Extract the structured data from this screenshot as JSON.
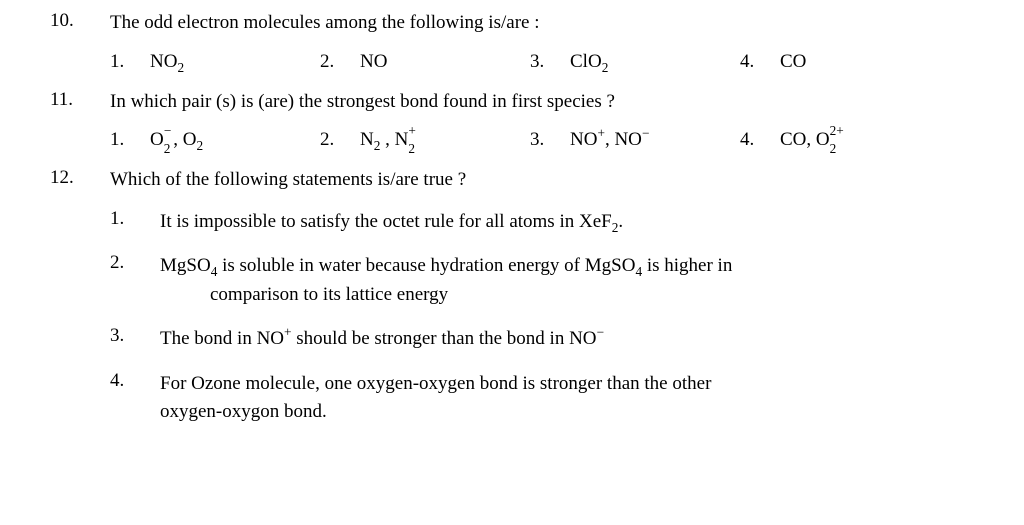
{
  "questions": [
    {
      "num": "10.",
      "text": "The odd electron molecules among the following is/are :",
      "layout": "row4",
      "options": [
        {
          "num": "1.",
          "html": "NO<sub>2</sub>"
        },
        {
          "num": "2.",
          "html": "NO"
        },
        {
          "num": "3.",
          "html": "ClO<sub>2</sub>"
        },
        {
          "num": "4.",
          "html": "CO"
        }
      ]
    },
    {
      "num": "11.",
      "text": "In which pair (s) is (are) the strongest bond found in first species ?",
      "layout": "row4",
      "options": [
        {
          "num": "1.",
          "html": "<span class=\"rel\">O<span class=\"subsup-sub\">2</span><span class=\"subsup-sup\">−</span></span>&nbsp;&nbsp;, O<sub>2</sub>"
        },
        {
          "num": "2.",
          "html": "N<sub>2</sub> , <span class=\"rel\">N<span class=\"subsup-sub\">2</span><span class=\"subsup-sup\">+</span></span>"
        },
        {
          "num": "3.",
          "html": "NO<sup>+</sup>, NO<sup>−</sup>"
        },
        {
          "num": "4.",
          "html": "CO, <span class=\"rel\">O<span class=\"subsup-sub\">2</span><span class=\"subsup-sup\">2+</span></span>"
        }
      ]
    },
    {
      "num": "12.",
      "text": "Which of the following statements is/are true ?",
      "layout": "list",
      "options": [
        {
          "num": "1.",
          "html": "It is impossible to satisfy the octet rule for all atoms in XeF<sub>2</sub>."
        },
        {
          "num": "2.",
          "html": "MgSO<sub>4</sub> is soluble in water because hydration energy of MgSO<sub>4</sub> is higher in<br><span class=\"indent-more\">comparison to its lattice energy</span>"
        },
        {
          "num": "3.",
          "html": "The bond in NO<sup>+</sup> should be stronger than the bond in NO<sup>−</sup>"
        },
        {
          "num": "4.",
          "html": "For Ozone molecule, one oxygen-oxygen bond is stronger than the other<br><span>oxygen-oxygon bond.</span>"
        }
      ]
    }
  ]
}
